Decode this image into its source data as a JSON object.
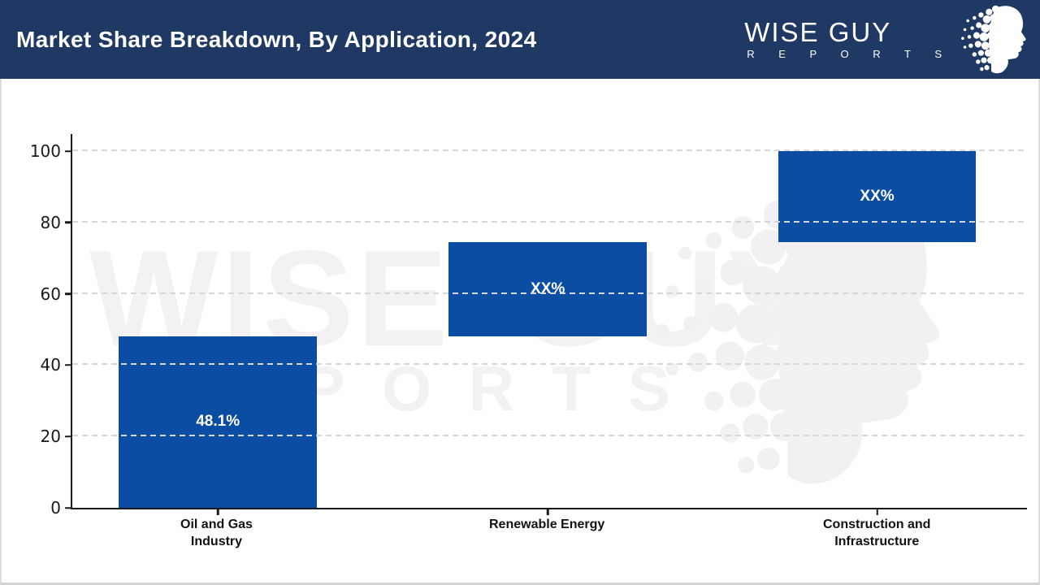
{
  "header": {
    "title": "Market Share Breakdown, By Application, 2024",
    "logo": {
      "name": "WISE GUY",
      "subname": "R E P O R T S",
      "head_icon": "dotted-face-profile"
    }
  },
  "watermark": {
    "line1": "WISE GUY",
    "line2": "REPORTS",
    "head_icon": "dotted-face-profile"
  },
  "colors": {
    "header_bg": "#1f3864",
    "bar": "#0b4da2",
    "bar_label": "#ffffff",
    "grid": "#d7d7d7",
    "axis": "#1a1a1a",
    "watermark": "#f2f2f5",
    "card_border": "#dcdcdc"
  },
  "chart_data": {
    "type": "bar",
    "subtype": "stacked-waterfall",
    "title": "Market Share Breakdown, By Application, 2024",
    "categories": [
      "Oil and Gas\nIndustry",
      "Renewable Energy",
      "Construction and\nInfrastructure"
    ],
    "bars": [
      {
        "category": "Oil and Gas Industry",
        "start": 0,
        "end": 48.1,
        "label": "48.1%"
      },
      {
        "category": "Renewable Energy",
        "start": 48.1,
        "end": 74.5,
        "label": "XX%"
      },
      {
        "category": "Construction and Infrastructure",
        "start": 74.5,
        "end": 100,
        "label": "XX%"
      }
    ],
    "ylim": [
      0,
      100
    ],
    "yticks": [
      0,
      20,
      40,
      60,
      80,
      100
    ],
    "grid": "horizontal-dashed-above-bars",
    "legend": "none",
    "xlabel": "",
    "ylabel": ""
  }
}
